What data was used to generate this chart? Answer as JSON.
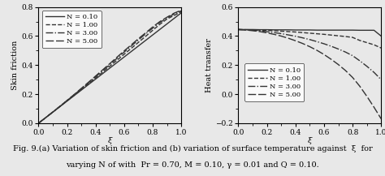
{
  "N_labels": [
    "N = 0.10",
    "N = 1.00",
    "N = 3.00",
    "N = 5.00"
  ],
  "xi": [
    0.0,
    0.05,
    0.1,
    0.15,
    0.2,
    0.25,
    0.3,
    0.35,
    0.4,
    0.45,
    0.5,
    0.55,
    0.6,
    0.65,
    0.7,
    0.75,
    0.8,
    0.85,
    0.9,
    0.95,
    1.0
  ],
  "skin_friction": {
    "0.10": [
      0.0,
      0.038,
      0.076,
      0.114,
      0.152,
      0.19,
      0.228,
      0.266,
      0.304,
      0.342,
      0.38,
      0.418,
      0.456,
      0.494,
      0.532,
      0.57,
      0.608,
      0.646,
      0.684,
      0.722,
      0.76
    ],
    "1.00": [
      0.0,
      0.038,
      0.076,
      0.115,
      0.154,
      0.193,
      0.233,
      0.272,
      0.312,
      0.352,
      0.393,
      0.434,
      0.475,
      0.516,
      0.557,
      0.598,
      0.64,
      0.681,
      0.718,
      0.742,
      0.768
    ],
    "3.00": [
      0.0,
      0.038,
      0.077,
      0.116,
      0.156,
      0.196,
      0.237,
      0.278,
      0.32,
      0.362,
      0.404,
      0.447,
      0.49,
      0.532,
      0.574,
      0.615,
      0.655,
      0.693,
      0.725,
      0.752,
      0.774
    ],
    "5.00": [
      0.0,
      0.038,
      0.077,
      0.117,
      0.157,
      0.198,
      0.24,
      0.282,
      0.325,
      0.368,
      0.411,
      0.455,
      0.498,
      0.54,
      0.582,
      0.622,
      0.663,
      0.7,
      0.73,
      0.758,
      0.778
    ]
  },
  "heat_transfer": {
    "0.10": [
      0.445,
      0.445,
      0.445,
      0.444,
      0.444,
      0.443,
      0.443,
      0.443,
      0.442,
      0.442,
      0.442,
      0.441,
      0.441,
      0.441,
      0.441,
      0.441,
      0.441,
      0.44,
      0.44,
      0.44,
      0.4
    ],
    "1.00": [
      0.445,
      0.444,
      0.443,
      0.441,
      0.439,
      0.437,
      0.434,
      0.431,
      0.428,
      0.424,
      0.42,
      0.416,
      0.412,
      0.407,
      0.402,
      0.397,
      0.391,
      0.37,
      0.355,
      0.34,
      0.318
    ],
    "3.00": [
      0.445,
      0.443,
      0.44,
      0.436,
      0.43,
      0.424,
      0.417,
      0.408,
      0.399,
      0.388,
      0.376,
      0.362,
      0.347,
      0.33,
      0.311,
      0.29,
      0.265,
      0.23,
      0.192,
      0.15,
      0.1
    ],
    "5.00": [
      0.445,
      0.442,
      0.437,
      0.431,
      0.422,
      0.412,
      0.4,
      0.385,
      0.368,
      0.349,
      0.327,
      0.302,
      0.273,
      0.24,
      0.204,
      0.163,
      0.115,
      0.055,
      -0.015,
      -0.09,
      -0.17
    ]
  },
  "sf_ylim": [
    0.0,
    0.8
  ],
  "sf_yticks": [
    0.0,
    0.2,
    0.4,
    0.6,
    0.8
  ],
  "ht_ylim": [
    -0.2,
    0.6
  ],
  "ht_yticks": [
    -0.2,
    0.0,
    0.2,
    0.4,
    0.6
  ],
  "xlim": [
    0.0,
    1.0
  ],
  "xticks": [
    0.0,
    0.2,
    0.4,
    0.6,
    0.8,
    1.0
  ],
  "xlabel": "ξ",
  "sf_ylabel": "Skin friction",
  "ht_ylabel": "Heat transfer",
  "legend_loc_sf": "upper left",
  "legend_loc_ht": "center left",
  "line_color": "#333333",
  "background_color": "#e8e8e8",
  "plot_bg_color": "#e8e8e8",
  "linewidth": 1.0,
  "caption_line1": "Fig. 9.(a) Variation of skin friction and (b) variation of surface temperature against  ξ  for",
  "caption_line2": "varying N of with  Pr = 0.70, M = 0.10, γ = 0.01 and Q = 0.10."
}
